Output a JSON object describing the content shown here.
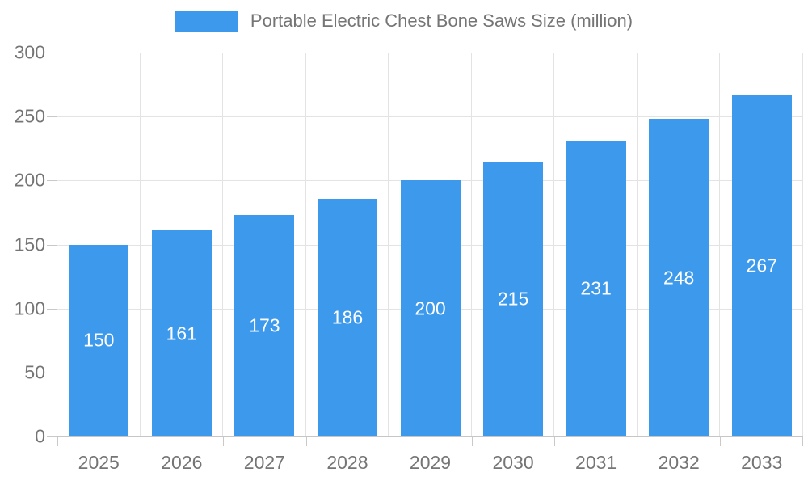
{
  "chart_data": {
    "type": "bar",
    "title": "Portable Electric Chest Bone Saws Size (million)",
    "legend_label": "Portable Electric Chest Bone Saws Size (million)",
    "legend_position": "top-center",
    "categories": [
      "2025",
      "2026",
      "2027",
      "2028",
      "2029",
      "2030",
      "2031",
      "2032",
      "2033"
    ],
    "values": [
      150,
      161,
      173,
      186,
      200,
      215,
      231,
      248,
      267
    ],
    "value_labels": [
      "150",
      "161",
      "173",
      "186",
      "200",
      "215",
      "231",
      "248",
      "267"
    ],
    "xlabel": "",
    "ylabel": "",
    "ylim": [
      0,
      300
    ],
    "yticks": [
      0,
      50,
      100,
      150,
      200,
      250,
      300
    ],
    "ytick_labels": [
      "0",
      "50",
      "100",
      "150",
      "200",
      "250",
      "300"
    ],
    "grid": true,
    "colors": {
      "bar": "#3C99EC",
      "value_label": "#ffffff",
      "axis_text": "#757575",
      "gridline": "#e3e3e3",
      "axis_line": "#b2b2b2",
      "tick": "#c9c9c9",
      "background": "#ffffff"
    }
  }
}
